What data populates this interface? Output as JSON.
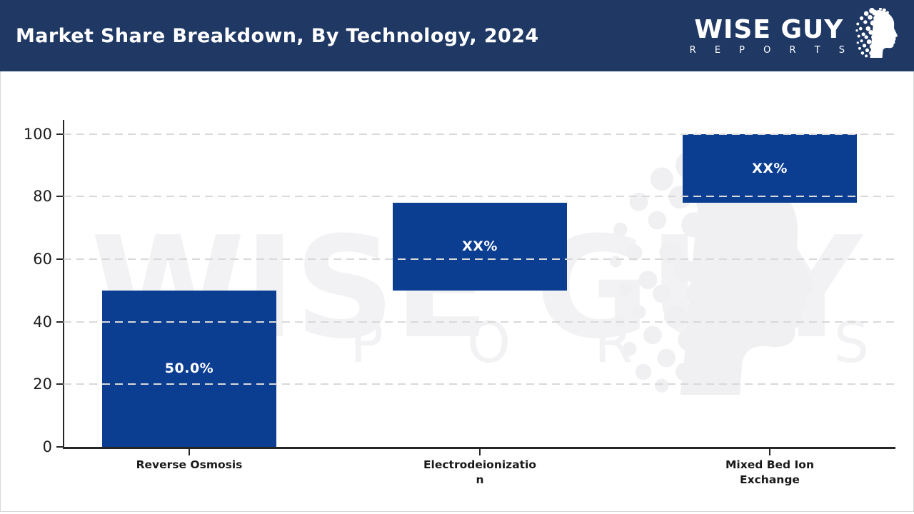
{
  "header": {
    "title": "Market Share Breakdown, By Technology, 2024",
    "logo": {
      "name": "WISE GUY",
      "tagline": "R E P O R T S"
    }
  },
  "watermark": {
    "name": "WISE GUY",
    "tagline": "R E P O R T S"
  },
  "chart_data": {
    "type": "bar",
    "variant": "floating-waterfall-segments",
    "title": "Market Share Breakdown, By Technology, 2024",
    "categories": [
      "Reverse Osmosis",
      "Electrodeionization",
      "Mixed Bed Ion Exchange"
    ],
    "category_display_lines": [
      [
        "Reverse Osmosis"
      ],
      [
        "Electrodeionizatio",
        "n"
      ],
      [
        "Mixed Bed Ion",
        "Exchange"
      ]
    ],
    "bars": [
      {
        "category": "Reverse Osmosis",
        "from": 0,
        "to": 50,
        "label": "50.0%"
      },
      {
        "category": "Electrodeionization",
        "from": 50,
        "to": 78,
        "label": "XX%"
      },
      {
        "category": "Mixed Bed Ion Exchange",
        "from": 78,
        "to": 100,
        "label": "XX%"
      }
    ],
    "ylim": [
      0,
      100
    ],
    "yticks": [
      0,
      20,
      40,
      60,
      80,
      100
    ],
    "xlabel": "",
    "ylabel": "",
    "legend": null,
    "grid": {
      "visible": true,
      "style": "dashed",
      "axis": "y",
      "on_top_of_bars": true
    },
    "colors": {
      "bar": "#0b3d91",
      "bar_label": "#ffffff",
      "grid": "#d9d9d9",
      "axis": "#262626",
      "tick_label": "#1a1a1a",
      "header_bg": "#1f3864",
      "header_text": "#ffffff",
      "watermark": "#f2f2f5"
    }
  }
}
